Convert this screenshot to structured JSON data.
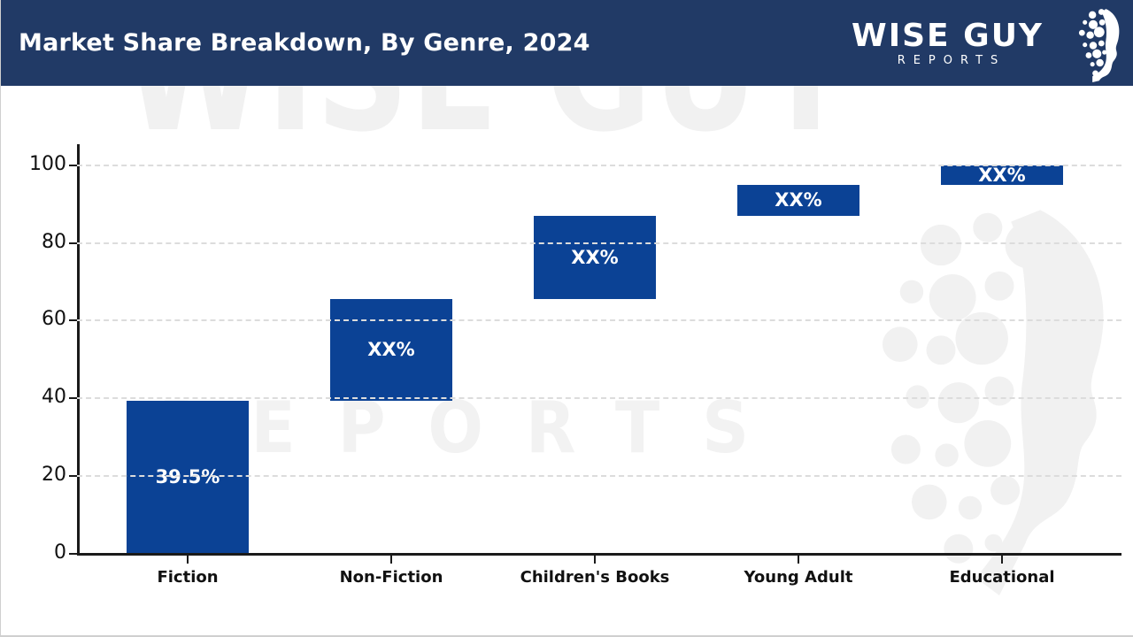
{
  "header": {
    "title": "Market Share Breakdown, By Genre, 2024",
    "logo": {
      "brand_top": "WISE GUY",
      "brand_bottom": "REPORTS",
      "icon": "wise-guy-head-logo",
      "background_color": "#213a66",
      "text_color": "#ffffff"
    }
  },
  "watermark": {
    "brand_top": "WISE GUY",
    "brand_bottom": "REPORTS",
    "color": "#f1f1f1"
  },
  "chart_data": {
    "type": "bar",
    "subtype": "waterfall-floating",
    "title": "",
    "xlabel": "",
    "ylabel": "",
    "categories": [
      "Fiction",
      "Non-Fiction",
      "Children's Books",
      "Young Adult",
      "Educational"
    ],
    "segments": [
      {
        "category": "Fiction",
        "start": 0,
        "end": 39.5,
        "label": "39.5%"
      },
      {
        "category": "Non-Fiction",
        "start": 39.5,
        "end": 65.5,
        "label": "XX%"
      },
      {
        "category": "Children's Books",
        "start": 65.5,
        "end": 87,
        "label": "XX%"
      },
      {
        "category": "Young Adult",
        "start": 87,
        "end": 95,
        "label": "XX%"
      },
      {
        "category": "Educational",
        "start": 95,
        "end": 100,
        "label": "XX%"
      }
    ],
    "increment_values": [
      39.5,
      26,
      21.5,
      8,
      5
    ],
    "yticks": [
      0,
      20,
      40,
      60,
      80,
      100
    ],
    "ylim": [
      0,
      105
    ],
    "grid": "horizontal-dashed",
    "gridline_color": "#dcdcdc",
    "bar_color": "#0b4295",
    "bar_label_color": "#ffffff",
    "axis_color": "#1a1a1a",
    "legend": "none"
  }
}
